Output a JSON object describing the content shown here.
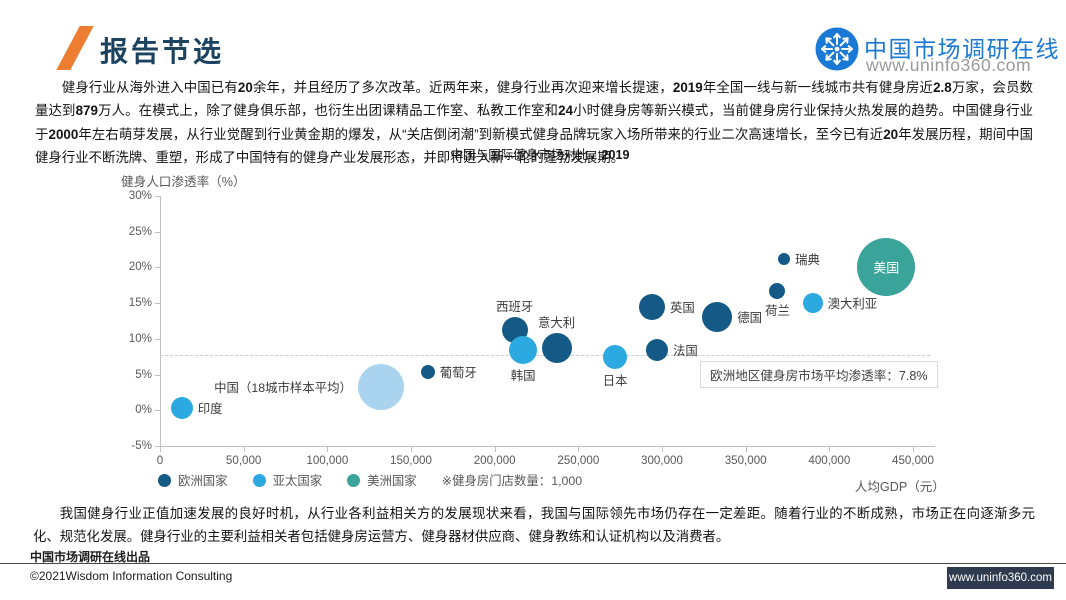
{
  "header": {
    "title": "报告节选",
    "logo_text": "中国市场调研在线",
    "logo_url": "www.uninfo360.com"
  },
  "intro_paragraph": {
    "segments": [
      {
        "t": "健身行业从海外进入中国已有",
        "b": false
      },
      {
        "t": "20",
        "b": true
      },
      {
        "t": "余年，并且经历了多次改革。近两年来，健身行业再次迎来增长提速，",
        "b": false
      },
      {
        "t": "2019",
        "b": true
      },
      {
        "t": "年全国一线与新一线城市共有健身房近",
        "b": false
      },
      {
        "t": "2.8",
        "b": true
      },
      {
        "t": "万家，会员数量达到",
        "b": false
      },
      {
        "t": "879",
        "b": true
      },
      {
        "t": "万人。在模式上，除了健身俱乐部，也衍生出团课精品工作室、私教工作室和",
        "b": false
      },
      {
        "t": "24",
        "b": true
      },
      {
        "t": "小时健身房等新兴模式，当前健身房行业保持火热发展的趋势。中国健身行业于",
        "b": false
      },
      {
        "t": "2000",
        "b": true
      },
      {
        "t": "年左右萌芽发展，从行业觉醒到行业黄金期的爆发，从“关店倒闭潮”到新模式健身品牌玩家入场所带来的行业二次高速增长，至今已有近",
        "b": false
      },
      {
        "t": "20",
        "b": true
      },
      {
        "t": "年发展历程，期间中国健身行业不断洗牌、重塑，形成了中国特有的健身产业发展形态，并即将进入新一轮的蓬勃发展期。",
        "b": false
      }
    ]
  },
  "closing_paragraph": {
    "segments": [
      {
        "t": "我国健身行业正值加速发展的良好时机，从行业各利益相关方的发展现状来看，我国与国际领先市场仍存在一定差距。随着行业的不断成熟，市场正在向逐渐多元化、规范化发展。健身行业的主要利益相关者包括健身房运营方、健身器材供应商、健身教练和认证机构以及消费者。",
        "b": false
      }
    ]
  },
  "chart_data": {
    "type": "scatter",
    "title": "中国与国际健身市场对比，2019",
    "title_segments": [
      {
        "t": "中国与国际健身市场对比，",
        "b": false
      },
      {
        "t": "2019",
        "b": true
      }
    ],
    "ylabel": "健身人口渗透率（%）",
    "xlabel": "人均GDP（元）",
    "xlim": [
      0,
      450000
    ],
    "ylim": [
      -5,
      30
    ],
    "grid": false,
    "x_ticks": [
      {
        "v": 0,
        "label": "0"
      },
      {
        "v": 50000,
        "label": "50,000"
      },
      {
        "v": 100000,
        "label": "100,000"
      },
      {
        "v": 150000,
        "label": "150,000"
      },
      {
        "v": 200000,
        "label": "200,000"
      },
      {
        "v": 250000,
        "label": "250,000"
      },
      {
        "v": 300000,
        "label": "300,000"
      },
      {
        "v": 350000,
        "label": "350,000"
      },
      {
        "v": 400000,
        "label": "400,000"
      },
      {
        "v": 450000,
        "label": "450,000"
      }
    ],
    "y_ticks": [
      {
        "v": 30,
        "label": "30%"
      },
      {
        "v": 25,
        "label": "25%"
      },
      {
        "v": 20,
        "label": "20%"
      },
      {
        "v": 15,
        "label": "15%"
      },
      {
        "v": 10,
        "label": "10%"
      },
      {
        "v": 5,
        "label": "5%"
      },
      {
        "v": 0,
        "label": "0%"
      },
      {
        "v": -5,
        "label": "-5%"
      }
    ],
    "reference_line": {
      "value": 7.8,
      "label": "欧洲地区健身房市场平均渗透率：7.8%"
    },
    "palette": {
      "europe": "#155987",
      "asia": "#2BA9E0",
      "america": "#3AA49A",
      "china_highlight": "#A9D3EE"
    },
    "legend": [
      {
        "label": "欧洲国家",
        "color": "#155987"
      },
      {
        "label": "亚太国家",
        "color": "#2BA9E0"
      },
      {
        "label": "美洲国家",
        "color": "#3AA49A"
      },
      {
        "label": "※健身房门店数量：1,000",
        "color": null
      }
    ],
    "points": [
      {
        "name": "印度",
        "group": "asia",
        "gdp": 13000,
        "penetration": 0.3,
        "r": 11,
        "label_pos": "right"
      },
      {
        "name": "中国（18城市样本平均）",
        "group": "asia",
        "color": "#A9D3EE",
        "gdp": 132000,
        "penetration": 3.3,
        "r": 23,
        "label_pos": "left"
      },
      {
        "name": "葡萄牙",
        "group": "europe",
        "gdp": 160000,
        "penetration": 5.3,
        "r": 7,
        "label_pos": "right"
      },
      {
        "name": "西班牙",
        "group": "europe",
        "gdp": 212000,
        "penetration": 11.2,
        "r": 13,
        "label_pos": "above"
      },
      {
        "name": "韩国",
        "group": "asia",
        "gdp": 217000,
        "penetration": 8.4,
        "r": 14,
        "label_pos": "below"
      },
      {
        "name": "意大利",
        "group": "europe",
        "gdp": 237000,
        "penetration": 8.7,
        "r": 15,
        "label_pos": "above"
      },
      {
        "name": "日本",
        "group": "asia",
        "gdp": 272000,
        "penetration": 7.4,
        "r": 12,
        "label_pos": "below"
      },
      {
        "name": "英国",
        "group": "europe",
        "gdp": 294000,
        "penetration": 14.5,
        "r": 13,
        "label_pos": "right"
      },
      {
        "name": "法国",
        "group": "europe",
        "gdp": 297000,
        "penetration": 8.4,
        "r": 11,
        "label_pos": "right"
      },
      {
        "name": "德国",
        "group": "europe",
        "gdp": 333000,
        "penetration": 13.0,
        "r": 15,
        "label_pos": "right"
      },
      {
        "name": "荷兰",
        "group": "europe",
        "gdp": 369000,
        "penetration": 16.7,
        "r": 8,
        "label_pos": "below"
      },
      {
        "name": "瑞典",
        "group": "europe",
        "gdp": 373000,
        "penetration": 21.2,
        "r": 6,
        "label_pos": "right"
      },
      {
        "name": "澳大利亚",
        "group": "asia",
        "gdp": 390000,
        "penetration": 15.0,
        "r": 10,
        "label_pos": "right"
      },
      {
        "name": "美国",
        "group": "america",
        "gdp": 434000,
        "penetration": 20.0,
        "r": 29,
        "label_pos": "inside"
      }
    ]
  },
  "footer": {
    "producer": "中国市场调研在线出品",
    "copyright": "©2021Wisdom Information Consulting",
    "site_badge": "www.uninfo360.com"
  }
}
